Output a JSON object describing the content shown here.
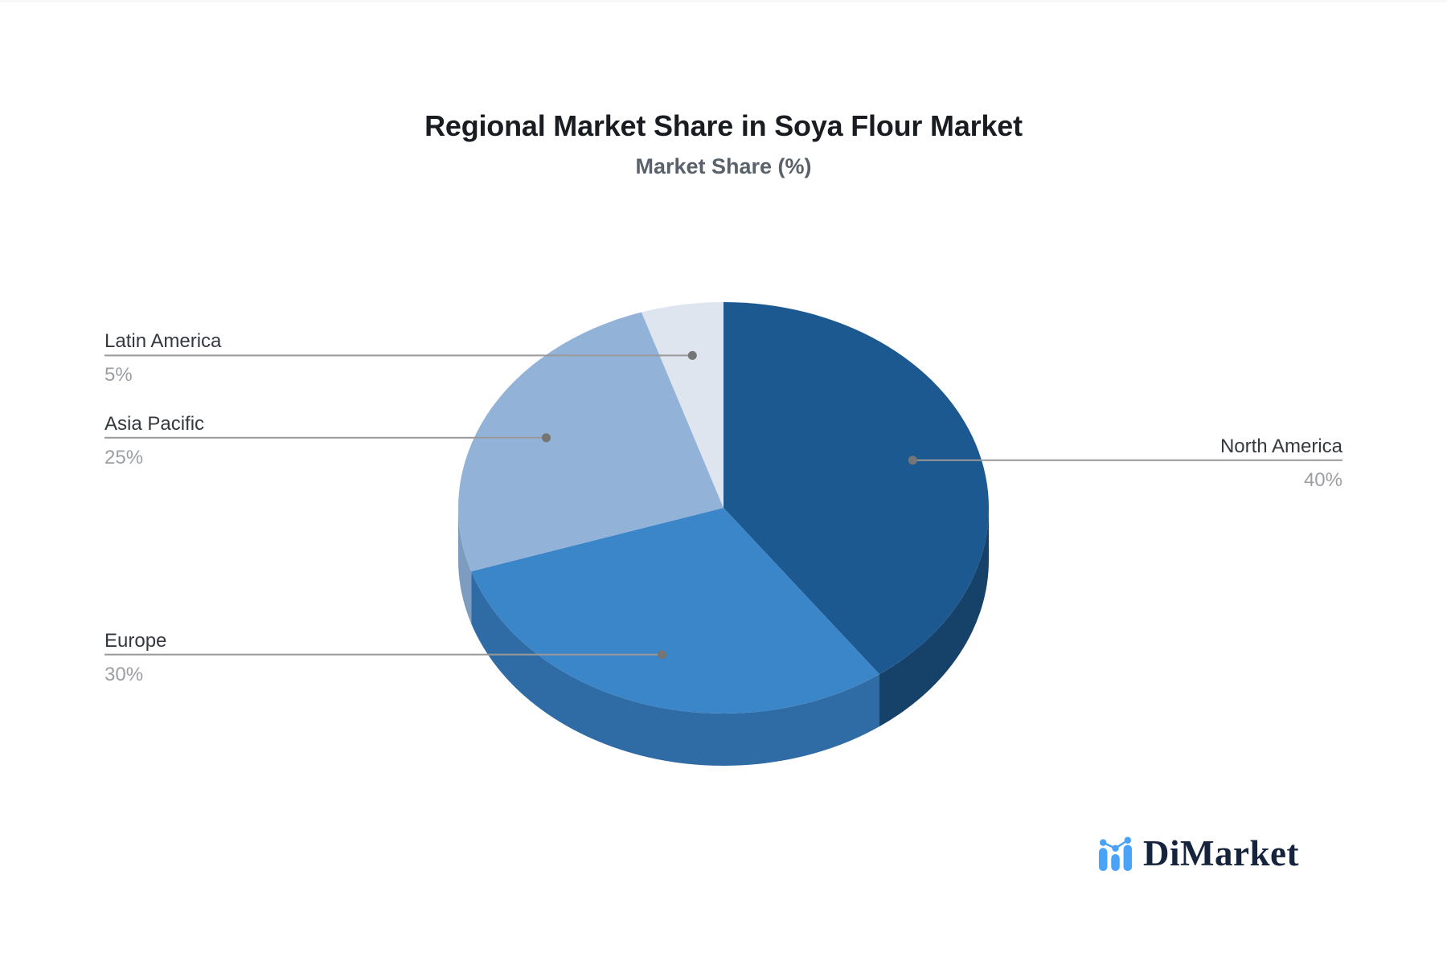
{
  "chart_data": {
    "type": "pie",
    "style": "3d-pie",
    "title": "Regional Market Share in Soya Flour Market",
    "subtitle": "Market Share (%)",
    "unit": "%",
    "start_angle": "top",
    "direction": "clockwise",
    "legend": "none",
    "categories": [
      "North America",
      "Europe",
      "Asia Pacific",
      "Latin America"
    ],
    "values": [
      40,
      30,
      25,
      5
    ],
    "series": [
      {
        "name": "North America",
        "value": 40,
        "value_label": "40%",
        "color": "#1D5991",
        "wall_color": "#164169",
        "label_side": "right"
      },
      {
        "name": "Europe",
        "value": 30,
        "value_label": "30%",
        "color": "#3A86C9",
        "wall_color": "#2F6BA4",
        "label_side": "left"
      },
      {
        "name": "Asia Pacific",
        "value": 25,
        "value_label": "25%",
        "color": "#93B2D7",
        "wall_color": "#7E9CC0",
        "label_side": "left"
      },
      {
        "name": "Latin America",
        "value": 5,
        "value_label": "5%",
        "color": "#DFE5EF",
        "wall_color": "#C9D4E4",
        "label_side": "left"
      }
    ],
    "connector_line_color": "#999999",
    "connector_dot_color": "#757575",
    "label_name_color": "#34393F",
    "label_value_color": "#9B9EA3"
  },
  "logo": {
    "text": "DiMarket",
    "icon": "bar-chart-icon",
    "text_color": "#16233C",
    "icon_color": "#4AA3F7"
  }
}
